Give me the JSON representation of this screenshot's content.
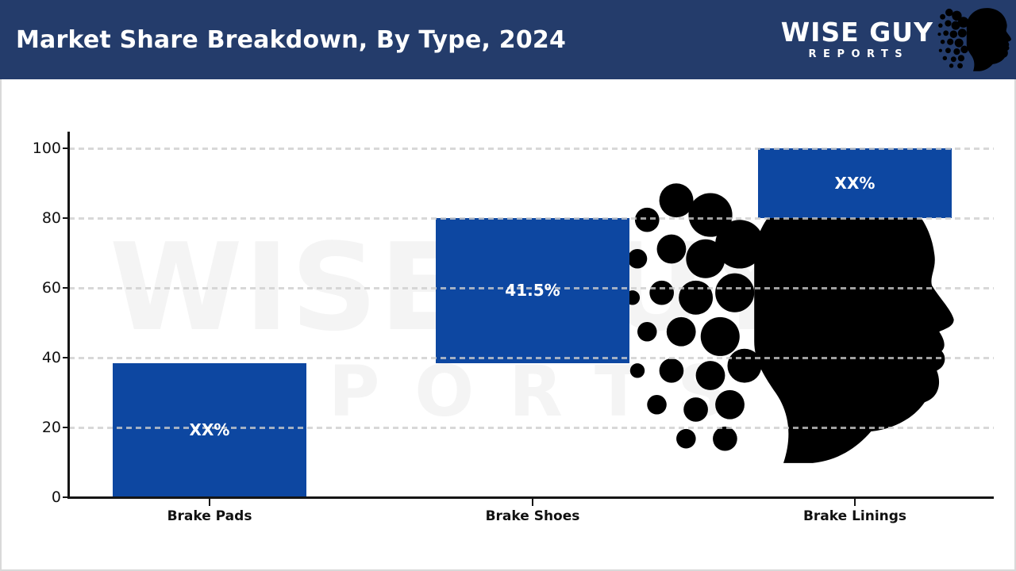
{
  "header": {
    "title": "Market Share Breakdown, By Type, 2024",
    "logo_line1": "WISE GUY",
    "logo_line2": "REPORTS",
    "bg_color": "#243c6b"
  },
  "watermark": {
    "line1": "WISE GUY",
    "line2": "REPORTS"
  },
  "chart_data": {
    "type": "bar",
    "subtype": "waterfall",
    "title": "Market Share Breakdown, By Type, 2024",
    "categories": [
      "Brake Pads",
      "Brake Shoes",
      "Brake Linings"
    ],
    "segments": [
      {
        "category": "Brake Pads",
        "start": 0,
        "end": 38.5,
        "label": "XX%"
      },
      {
        "category": "Brake Shoes",
        "start": 38.5,
        "end": 80,
        "label": "41.5%"
      },
      {
        "category": "Brake Linings",
        "start": 80,
        "end": 100,
        "label": "XX%"
      }
    ],
    "xlabel": "",
    "ylabel": "",
    "yticks": [
      0,
      20,
      40,
      60,
      80,
      100
    ],
    "ylim": [
      0,
      105
    ],
    "grid": "horizontal-dashed",
    "legend": "none",
    "bar_color": "#0d47a1",
    "axis_color": "#151515",
    "gridline_color": "#cdcdcd"
  }
}
